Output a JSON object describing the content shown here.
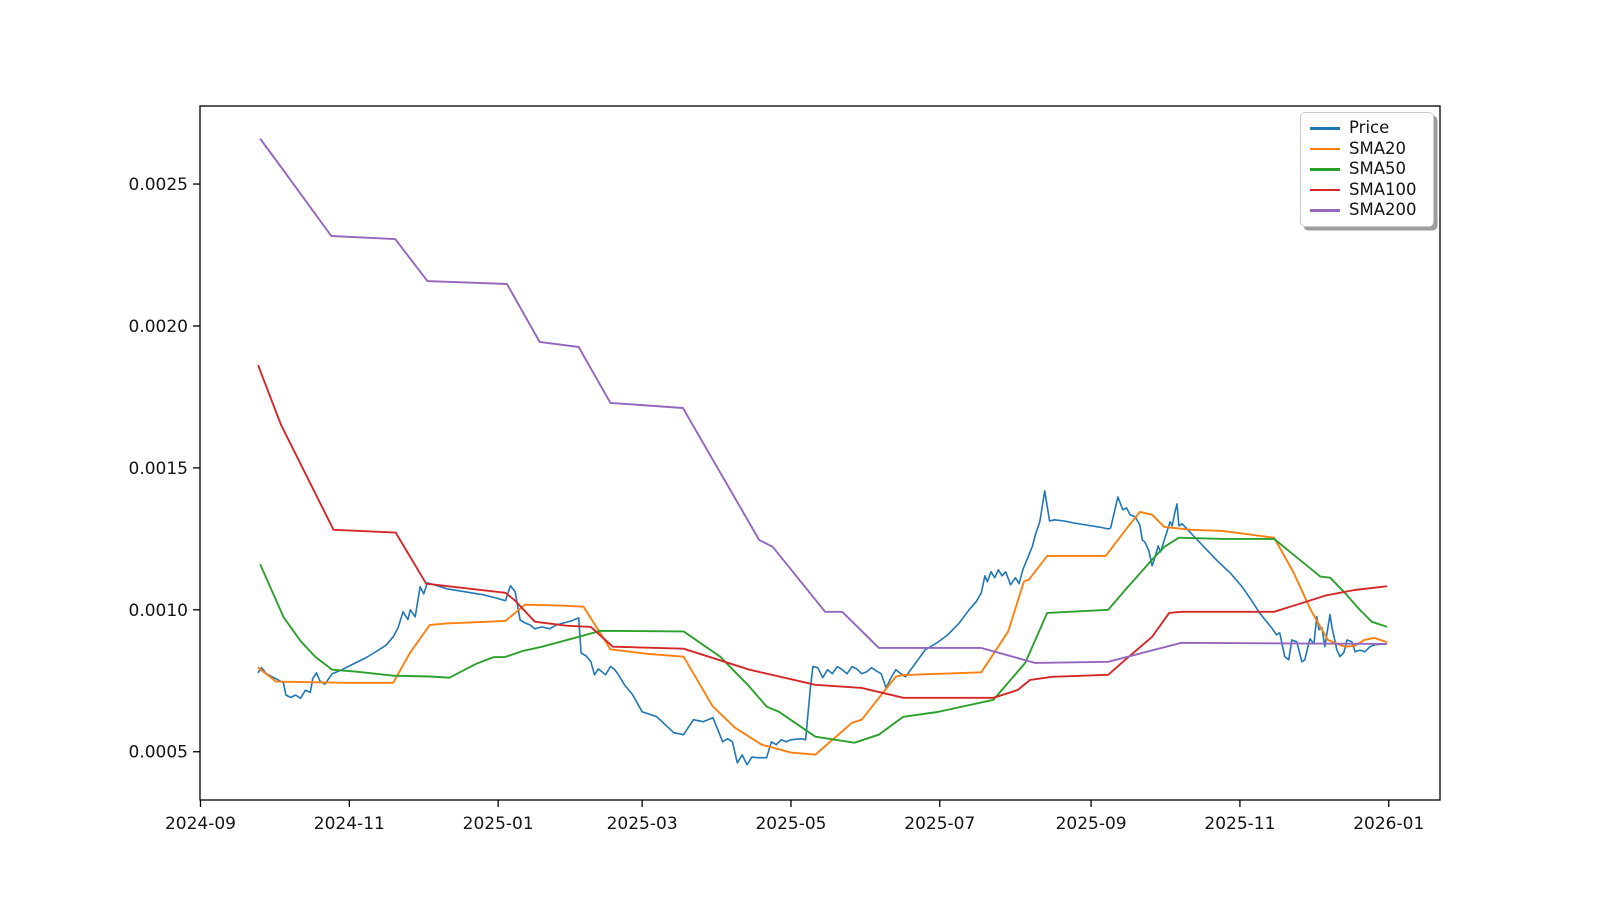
{
  "chart_data": {
    "type": "line",
    "title": "",
    "xlabel": "",
    "ylabel": "",
    "grid": false,
    "background": "#ffffff",
    "axis_color": "#000000",
    "tick_label_color": "#141414",
    "legend": {
      "position": "upper right",
      "entries": [
        "Price",
        "SMA20",
        "SMA50",
        "SMA100",
        "SMA200"
      ]
    },
    "x_axis": {
      "unit": "days since 2024-09-01",
      "tick_days": [
        0,
        61,
        122,
        181,
        242,
        303,
        365,
        426,
        487
      ],
      "tick_labels": [
        "2024-09",
        "2024-11",
        "2025-01",
        "2025-03",
        "2025-05",
        "2025-07",
        "2025-09",
        "2025-11",
        "2026-01"
      ],
      "lim": [
        -0.2,
        508
      ]
    },
    "y_axis": {
      "tick_values": [
        0.0005,
        0.001,
        0.0015,
        0.002,
        0.0025
      ],
      "tick_labels": [
        "0.0005",
        "0.0010",
        "0.0015",
        "0.0020",
        "0.0025"
      ],
      "lim": [
        0.00033,
        0.002775
      ]
    },
    "y_value_multiplier": 1e-06,
    "series": [
      {
        "name": "Price",
        "color": "#1f77b4",
        "x": [
          23.7,
          25,
          27,
          31,
          34,
          35,
          37,
          39,
          41,
          43,
          45,
          46,
          47.5,
          49,
          51,
          54,
          58,
          63,
          68,
          72,
          76,
          79,
          81,
          83,
          85,
          86,
          88,
          90,
          91.5,
          93,
          97,
          101,
          106,
          111,
          116,
          121,
          125,
          127,
          129,
          131,
          133,
          135,
          137,
          140,
          143,
          146,
          149,
          152,
          155,
          156,
          158,
          160,
          161.5,
          163,
          164.5,
          166,
          168,
          169.5,
          171,
          174,
          177,
          181,
          187,
          194,
          198,
          202,
          206,
          210,
          212,
          214,
          216,
          218,
          220,
          222,
          224,
          226,
          228,
          232,
          234,
          236,
          238,
          240,
          242,
          246,
          248,
          250,
          251,
          253,
          255,
          257,
          259,
          261,
          263,
          265,
          267,
          269,
          271,
          273,
          275,
          277,
          279,
          281,
          283,
          285,
          287,
          289,
          292,
          297,
          302,
          306,
          311,
          315,
          318,
          320,
          321.5,
          322.5,
          324,
          325.5,
          327,
          328.5,
          330,
          332,
          334,
          335.5,
          337,
          341,
          342,
          344,
          346,
          348,
          350,
          354,
          358,
          363,
          368,
          372,
          373,
          376,
          378,
          379.5,
          381,
          383,
          385,
          386,
          387,
          388.7,
          390,
          390.8,
          392.5,
          393.5,
          397.4,
          398.2,
          399.4,
          400.2,
          401,
          402.3,
          407,
          412,
          417,
          422,
          427,
          431,
          434,
          439,
          441,
          442.3,
          444.4,
          446,
          447.3,
          449.3,
          451.4,
          452.6,
          454.7,
          456.3,
          457.5,
          458.4,
          459.6,
          460.8,
          462.9,
          463.7,
          465.7,
          467,
          468.6,
          469.9,
          471.9,
          473.2,
          475.2,
          477.2,
          479.3,
          481.3,
          486
        ],
        "y": [
          780,
          796,
          775,
          757,
          743,
          700,
          691,
          700,
          688,
          717,
          709,
          757,
          778,
          749,
          738,
          775,
          789,
          811,
          832,
          853,
          875,
          905,
          937,
          993,
          966,
          1000,
          975,
          1081,
          1056,
          1095,
          1085,
          1074,
          1067,
          1060,
          1053,
          1042,
          1032,
          1085,
          1063,
          964,
          954,
          947,
          933,
          940,
          933,
          947,
          954,
          961,
          972,
          848,
          838,
          817,
          771,
          792,
          782,
          771,
          800,
          792,
          775,
          733,
          702,
          641,
          623,
          567,
          560,
          613,
          606,
          620,
          578,
          535,
          546,
          535,
          461,
          489,
          454,
          482,
          479,
          479,
          535,
          525,
          542,
          535,
          542,
          546,
          542,
          729,
          800,
          796,
          761,
          789,
          775,
          800,
          789,
          775,
          800,
          792,
          775,
          782,
          796,
          785,
          775,
          725,
          760,
          789,
          775,
          764,
          800,
          859,
          885,
          910,
          954,
          1000,
          1030,
          1060,
          1120,
          1099,
          1134,
          1113,
          1141,
          1120,
          1134,
          1088,
          1113,
          1092,
          1141,
          1225,
          1260,
          1310,
          1419,
          1313,
          1317,
          1313,
          1306,
          1299,
          1292,
          1285,
          1288,
          1398,
          1352,
          1359,
          1335,
          1328,
          1299,
          1246,
          1239,
          1208,
          1155,
          1174,
          1225,
          1204,
          1310,
          1296,
          1345,
          1373,
          1296,
          1303,
          1260,
          1215,
          1170,
          1130,
          1080,
          1030,
          990,
          937,
          912,
          919,
          835,
          824,
          894,
          887,
          817,
          824,
          898,
          880,
          976,
          930,
          937,
          870,
          983,
          940,
          860,
          835,
          850,
          894,
          887,
          852,
          858,
          852,
          870,
          877,
          880
        ]
      },
      {
        "name": "SMA20",
        "color": "#ff7f0e",
        "x": [
          23.7,
          31,
          45,
          60,
          79,
          86,
          94,
          101,
          125,
          133,
          148,
          157,
          168,
          183,
          198,
          210,
          219,
          230,
          242,
          252,
          267,
          271,
          285,
          288,
          320,
          331,
          337.5,
          339.5,
          347,
          371,
          379,
          385,
          390,
          395,
          406,
          419,
          440,
          448,
          455,
          462,
          469,
          473,
          477,
          481,
          486
        ],
        "y": [
          796,
          747,
          745,
          743,
          743,
          850,
          947,
          952,
          961,
          1018,
          1015,
          1011,
          861,
          845,
          835,
          659,
          585,
          525,
          497,
          490,
          602,
          613,
          765,
          770,
          780,
          923,
          1100,
          1106,
          1190,
          1190,
          1280,
          1345,
          1335,
          1292,
          1282,
          1278,
          1254,
          1131,
          1000,
          894,
          870,
          873,
          894,
          901,
          887
        ]
      },
      {
        "name": "SMA50",
        "color": "#2ca02c",
        "x": [
          24.6,
          34,
          41,
          47,
          54,
          64,
          79,
          94,
          102,
          113,
          120,
          125,
          132,
          140,
          153,
          164,
          198,
          213,
          225,
          232,
          237,
          252,
          268,
          278,
          288,
          302,
          325,
          338,
          347,
          372,
          379,
          390,
          395,
          401,
          419,
          440,
          448,
          454,
          459,
          463,
          469,
          475,
          480,
          486
        ],
        "y": [
          1158,
          975,
          890,
          835,
          789,
          782,
          768,
          765,
          761,
          810,
          833,
          834,
          855,
          870,
          900,
          926,
          924,
          835,
          729,
          659,
          641,
          553,
          532,
          560,
          623,
          640,
          683,
          813,
          989,
          1000,
          1070,
          1177,
          1222,
          1254,
          1250,
          1250,
          1194,
          1152,
          1117,
          1113,
          1060,
          1001,
          958,
          941
        ]
      },
      {
        "name": "SMA100",
        "color": "#d62728",
        "x": [
          23.7,
          33,
          54.5,
          80,
          92.5,
          125,
          129,
          137,
          150,
          160,
          169,
          198,
          225,
          252,
          271,
          288,
          325,
          335,
          340,
          349,
          372,
          379,
          390,
          397,
          402,
          440,
          450,
          461,
          473,
          486
        ],
        "y": [
          1860,
          1652,
          1282,
          1272,
          1092,
          1060,
          1032,
          958,
          944,
          940,
          870,
          863,
          789,
          736,
          725,
          690,
          690,
          718,
          753,
          764,
          771,
          824,
          905,
          989,
          993,
          993,
          1020,
          1050,
          1070,
          1083
        ]
      },
      {
        "name": "SMA200",
        "color": "#9467bd",
        "x": [
          24.6,
          33.6,
          53.6,
          79.8,
          93,
          125.6,
          139,
          155,
          168,
          197.7,
          229,
          234.5,
          256,
          263,
          278,
          320,
          342,
          372,
          402,
          486
        ],
        "y": [
          2658,
          2553,
          2317,
          2306,
          2158,
          2148,
          1944,
          1926,
          1729,
          1711,
          1246,
          1222,
          993,
          993,
          866,
          866,
          813,
          817,
          884,
          880
        ]
      }
    ]
  }
}
